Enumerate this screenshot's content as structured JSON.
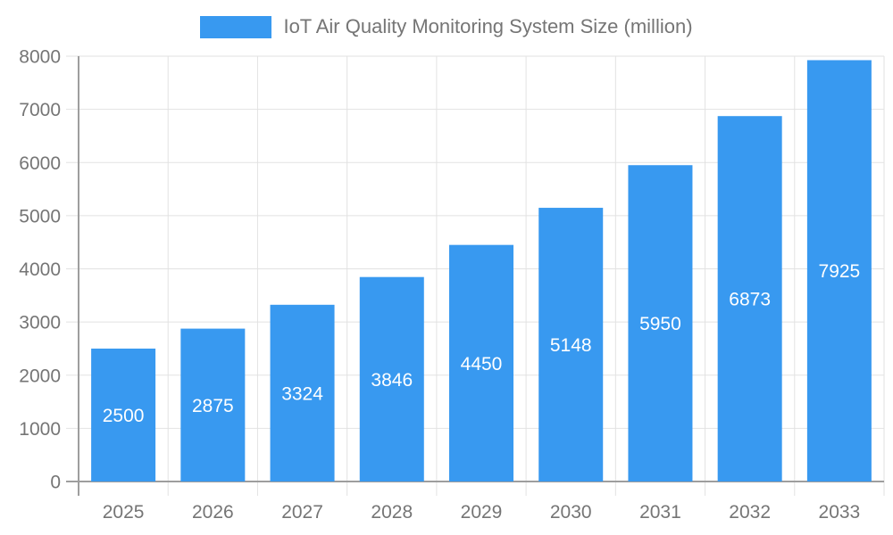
{
  "legend": {
    "label": "IoT Air Quality Monitoring System Size (million)"
  },
  "chart_data": {
    "type": "bar",
    "title": "",
    "categories": [
      "2025",
      "2026",
      "2027",
      "2028",
      "2029",
      "2030",
      "2031",
      "2032",
      "2033"
    ],
    "series": [
      {
        "name": "IoT Air Quality Monitoring System Size (million)",
        "values": [
          2500,
          2875,
          3324,
          3846,
          4450,
          5148,
          5950,
          6873,
          7925
        ]
      }
    ],
    "xlabel": "",
    "ylabel": "",
    "ylim": [
      0,
      8000
    ],
    "ytick_step": 1000,
    "ytick_labels": [
      "0",
      "1000",
      "2000",
      "3000",
      "4000",
      "5000",
      "6000",
      "7000",
      "8000"
    ],
    "grid": true,
    "show_bar_value_labels": true,
    "legend_position": "top-center"
  },
  "style": {
    "bar_color": "#3899F0",
    "bar_label_color": "#ffffff",
    "axis_text_color": "#757575",
    "grid_color": "#e2e2e2",
    "axis_line_color": "#9e9e9e",
    "background_color": "#ffffff"
  }
}
